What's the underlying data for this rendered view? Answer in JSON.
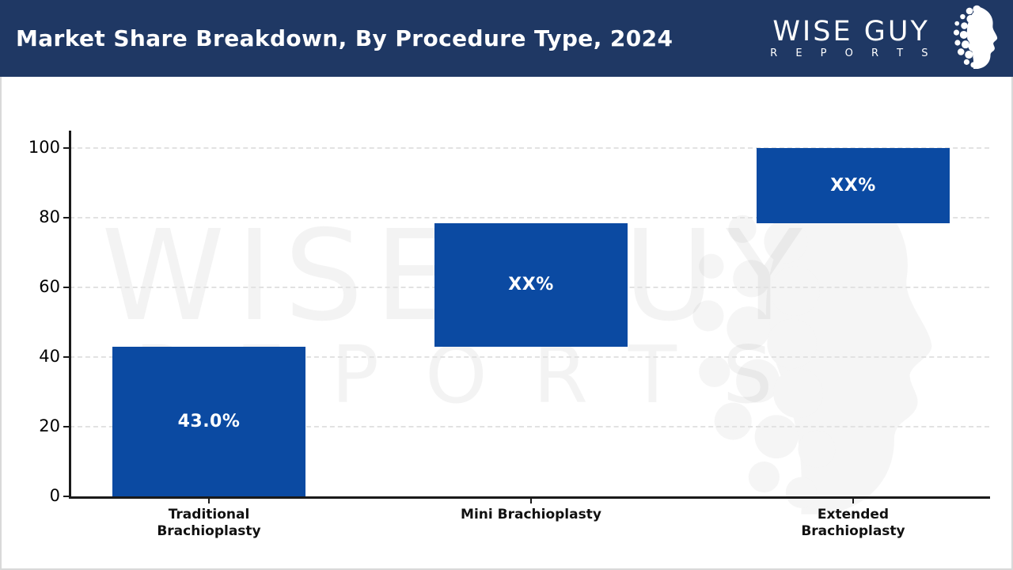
{
  "header": {
    "title": "Market Share Breakdown, By Procedure Type, 2024",
    "logo": {
      "line1": "WISE GUY",
      "line2": "R E P O R T S"
    },
    "bg_color": "#1f3864"
  },
  "watermark": {
    "line1": "WISE GUY",
    "line2": "REPORTS"
  },
  "chart_data": {
    "type": "bar",
    "subtype": "waterfall",
    "title": "Market Share Breakdown, By Procedure Type, 2024",
    "categories": [
      "Traditional Brachioplasty",
      "Mini Brachioplasty",
      "Extended Brachioplasty"
    ],
    "categories_lines": [
      [
        "Traditional",
        "Brachioplasty"
      ],
      [
        "Mini Brachioplasty"
      ],
      [
        "Extended",
        "Brachioplasty"
      ]
    ],
    "segments": [
      {
        "label": "43.0%",
        "start": 0.0,
        "end": 43.0
      },
      {
        "label": "XX%",
        "start": 43.0,
        "end": 78.5
      },
      {
        "label": "XX%",
        "start": 78.5,
        "end": 100.0
      }
    ],
    "values": [
      43.0,
      35.5,
      21.5
    ],
    "y_ticks": [
      0,
      20,
      40,
      60,
      80,
      100
    ],
    "ylim": [
      0,
      100
    ],
    "xlabel": "",
    "ylabel": "",
    "grid": "horizontal-dashed",
    "legend": "none",
    "bar_color": "#0b4aa2",
    "label_color": "#ffffff"
  }
}
